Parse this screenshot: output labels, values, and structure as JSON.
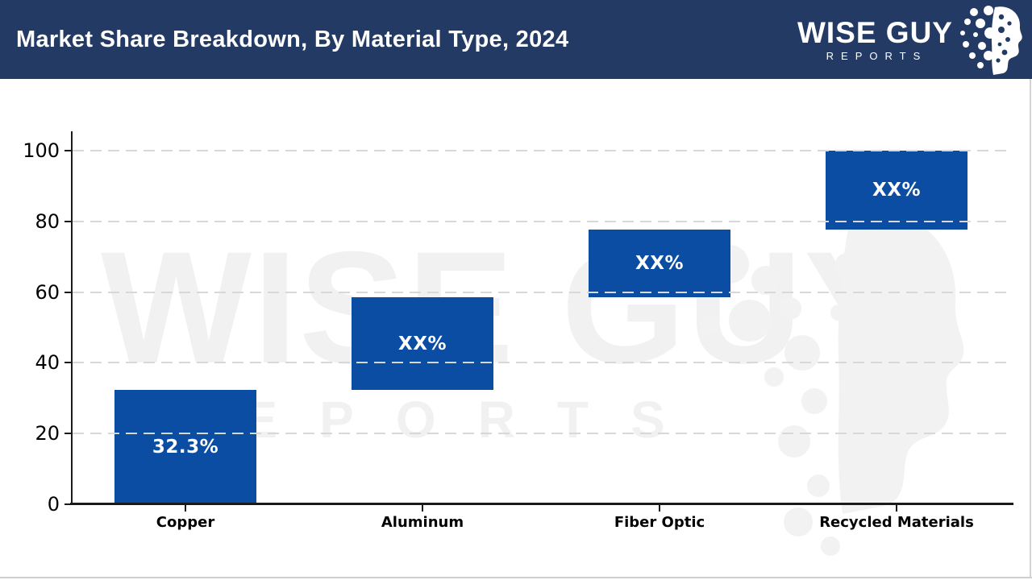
{
  "header": {
    "title": "Market Share Breakdown, By Material Type, 2024",
    "logo": {
      "line1": "WISE GUY",
      "line2": "REPORTS"
    }
  },
  "watermark": {
    "line1": "WISE GUY",
    "line2": "REPORTS"
  },
  "chart_data": {
    "type": "bar",
    "subtype": "waterfall",
    "title": "Market Share Breakdown, By Material Type, 2024",
    "categories": [
      "Copper",
      "Aluminum",
      "Fiber Optic",
      "Recycled Materials"
    ],
    "segments": [
      {
        "category": "Copper",
        "start": 0,
        "end": 32.3,
        "label": "32.3%"
      },
      {
        "category": "Aluminum",
        "start": 32.3,
        "end": 58.5,
        "label": "XX%"
      },
      {
        "category": "Fiber Optic",
        "start": 58.5,
        "end": 77.6,
        "label": "XX%"
      },
      {
        "category": "Recycled Materials",
        "start": 77.6,
        "end": 100,
        "label": "XX%"
      }
    ],
    "xlabel": "",
    "ylabel": "",
    "ylim": [
      0,
      100
    ],
    "yticks": [
      0,
      20,
      40,
      60,
      80,
      100
    ],
    "grid": "dashed horizontal, drawn over bars",
    "legend": "none",
    "bar_color": "#0b4da2",
    "bar_label_color": "#ffffff"
  }
}
